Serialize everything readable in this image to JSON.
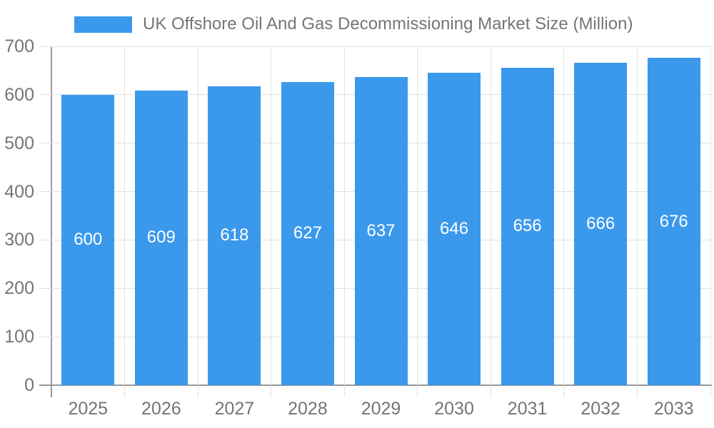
{
  "chart_data": {
    "type": "bar",
    "title": "UK Offshore Oil And Gas Decommissioning Market Size (Million)",
    "categories": [
      "2025",
      "2026",
      "2027",
      "2028",
      "2029",
      "2030",
      "2031",
      "2032",
      "2033"
    ],
    "values": [
      600,
      609,
      618,
      627,
      637,
      646,
      656,
      666,
      676
    ],
    "xlabel": "",
    "ylabel": "",
    "ylim": [
      0,
      700
    ],
    "yticks": [
      0,
      100,
      200,
      300,
      400,
      500,
      600,
      700
    ],
    "grid": true,
    "legend_position": "top",
    "bar_labels_inside": true,
    "colors": {
      "bar": "#3B99EC",
      "bar_label": "#FFFFFF",
      "axis": "#999999",
      "grid": "#E0E0E0",
      "text": "#757575",
      "background": "#FFFFFF"
    }
  }
}
